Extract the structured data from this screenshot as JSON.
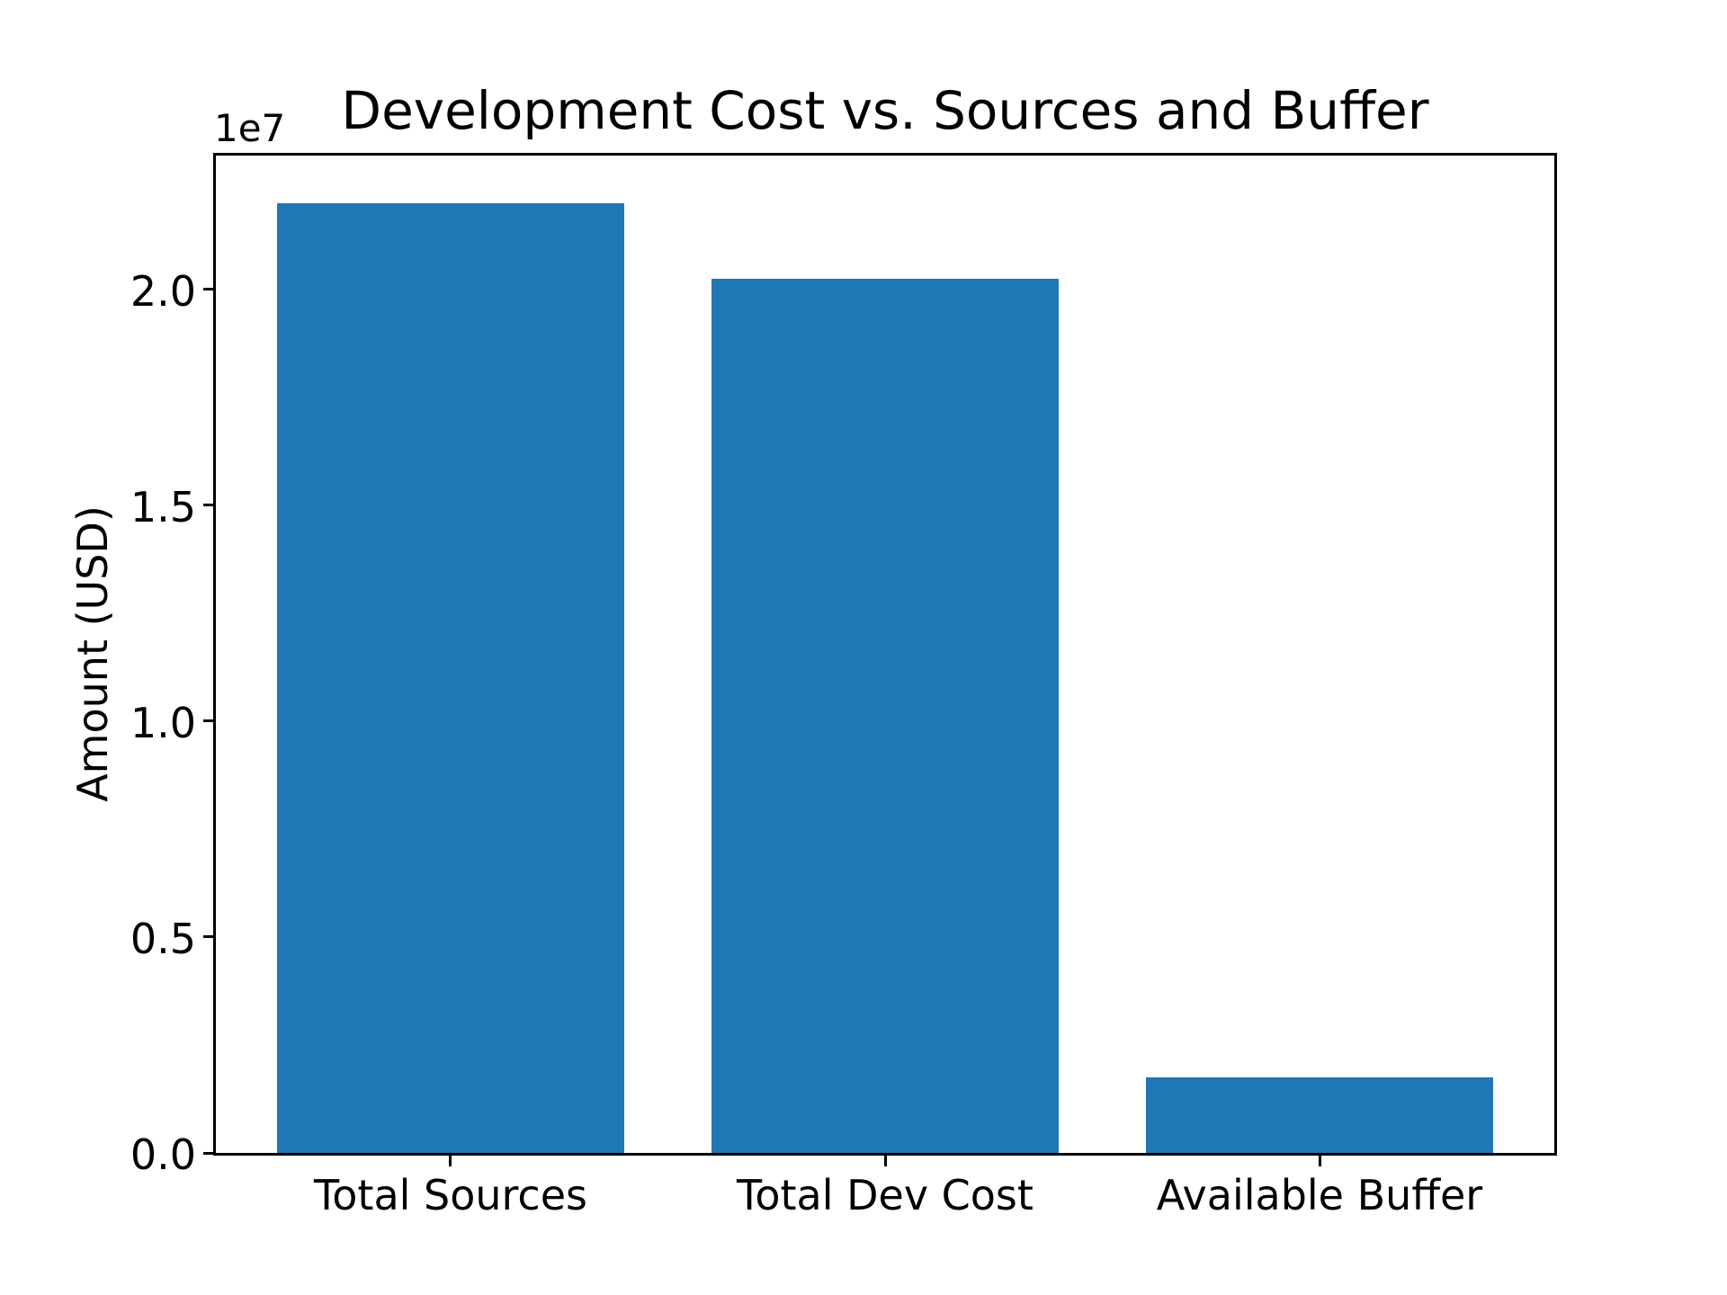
{
  "figure": {
    "background": "#ffffff"
  },
  "chart_data": {
    "type": "bar",
    "title": "Development Cost vs. Sources and Buffer",
    "xlabel": "",
    "ylabel": "Amount (USD)",
    "y_offset_label": "1e7",
    "categories": [
      "Total Sources",
      "Total Dev Cost",
      "Available Buffer"
    ],
    "values": [
      22000000,
      20250000,
      1750000
    ],
    "ylim": [
      0,
      23100000
    ],
    "y_ticks": [
      0,
      5000000,
      10000000,
      15000000,
      20000000
    ],
    "y_tick_labels": [
      "0.0",
      "0.5",
      "1.0",
      "1.5",
      "2.0"
    ],
    "bar_color": "#1f77b4",
    "axis_color": "#000000",
    "grid": false,
    "legend": null
  }
}
